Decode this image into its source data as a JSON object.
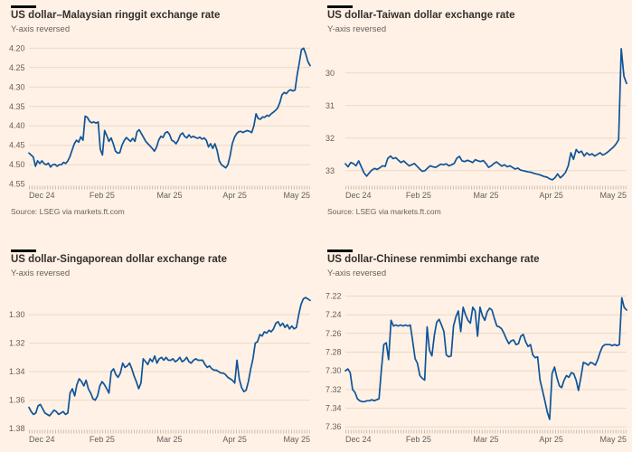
{
  "theme": {
    "background": "#FFF1E5",
    "title_color": "#33302E",
    "muted_color": "#66605C",
    "grid_color": "#EBD9C8",
    "tick_color": "#C7B7A5",
    "line_color": "#0F5499"
  },
  "chart_data": [
    {
      "type": "line",
      "title": "US dollar–Malaysian ringgit exchange rate",
      "subtitle": "Y-axis reversed",
      "source": "Source: LSEG via markets.ft.com",
      "legend": "none",
      "grid": "horizontal",
      "y_axis_reversed": true,
      "ylim": [
        4.197,
        4.553
      ],
      "y_ticks": [
        {
          "label": "4.20",
          "value": 4.2
        },
        {
          "label": "4.25",
          "value": 4.25
        },
        {
          "label": "4.30",
          "value": 4.3
        },
        {
          "label": "4.35",
          "value": 4.35
        },
        {
          "label": "4.40",
          "value": 4.4
        },
        {
          "label": "4.45",
          "value": 4.45
        },
        {
          "label": "4.50",
          "value": 4.5
        },
        {
          "label": "4.55",
          "value": 4.55
        }
      ],
      "x_ticks": [
        {
          "label": "Dec 24",
          "pos": 0.0,
          "anchor": "start"
        },
        {
          "label": "Feb 25",
          "pos": 0.26,
          "anchor": "middle"
        },
        {
          "label": "Mar 25",
          "pos": 0.5,
          "anchor": "middle"
        },
        {
          "label": "Apr 25",
          "pos": 0.732,
          "anchor": "middle"
        },
        {
          "label": "May 25",
          "pos": 1.0,
          "anchor": "end"
        }
      ],
      "values": [
        4.47,
        4.475,
        4.48,
        4.504,
        4.49,
        4.497,
        4.49,
        4.497,
        4.5,
        4.496,
        4.506,
        4.5,
        4.499,
        4.504,
        4.5,
        4.5,
        4.494,
        4.497,
        4.49,
        4.478,
        4.462,
        4.446,
        4.437,
        4.442,
        4.428,
        4.437,
        4.375,
        4.378,
        4.388,
        4.392,
        4.39,
        4.393,
        4.39,
        4.46,
        4.475,
        4.412,
        4.425,
        4.44,
        4.431,
        4.446,
        4.465,
        4.47,
        4.469,
        4.45,
        4.438,
        4.43,
        4.435,
        4.44,
        4.432,
        4.44,
        4.415,
        4.41,
        4.42,
        4.43,
        4.44,
        4.446,
        4.452,
        4.458,
        4.465,
        4.455,
        4.437,
        4.427,
        4.43,
        4.418,
        4.415,
        4.422,
        4.437,
        4.44,
        4.446,
        4.437,
        4.423,
        4.418,
        4.427,
        4.431,
        4.423,
        4.43,
        4.427,
        4.43,
        4.432,
        4.429,
        4.434,
        4.431,
        4.437,
        4.454,
        4.446,
        4.458,
        4.446,
        4.463,
        4.49,
        4.5,
        4.504,
        4.508,
        4.5,
        4.477,
        4.446,
        4.43,
        4.42,
        4.415,
        4.414,
        4.417,
        4.414,
        4.412,
        4.414,
        4.417,
        4.4,
        4.369,
        4.381,
        4.383,
        4.377,
        4.378,
        4.373,
        4.375,
        4.369,
        4.365,
        4.36,
        4.354,
        4.34,
        4.32,
        4.314,
        4.317,
        4.31,
        4.307,
        4.31,
        4.308,
        4.27,
        4.238,
        4.204,
        4.2,
        4.215,
        4.235,
        4.245
      ]
    },
    {
      "type": "line",
      "title": "US dollar-Taiwan dollar exchange rate",
      "subtitle": "Y-axis reversed",
      "source": "Source: LSEG via markets.ft.com",
      "legend": "none",
      "grid": "horizontal",
      "y_axis_reversed": true,
      "ylim": [
        29.2,
        33.45
      ],
      "y_ticks": [
        {
          "label": "30",
          "value": 30
        },
        {
          "label": "31",
          "value": 31
        },
        {
          "label": "32",
          "value": 32
        },
        {
          "label": "33",
          "value": 33
        }
      ],
      "x_ticks": [
        {
          "label": "Dec 24",
          "pos": 0.0,
          "anchor": "start"
        },
        {
          "label": "Feb 25",
          "pos": 0.26,
          "anchor": "middle"
        },
        {
          "label": "Mar 25",
          "pos": 0.5,
          "anchor": "middle"
        },
        {
          "label": "Apr 25",
          "pos": 0.732,
          "anchor": "middle"
        },
        {
          "label": "May 25",
          "pos": 1.0,
          "anchor": "end"
        }
      ],
      "values": [
        32.79,
        32.88,
        32.75,
        32.78,
        32.85,
        32.7,
        32.88,
        33.06,
        33.17,
        33.07,
        32.98,
        32.93,
        32.96,
        32.91,
        32.85,
        32.87,
        32.62,
        32.55,
        32.63,
        32.6,
        32.68,
        32.75,
        32.7,
        32.78,
        32.85,
        32.82,
        32.78,
        32.86,
        32.95,
        33.02,
        33.0,
        32.92,
        32.85,
        32.88,
        32.9,
        32.85,
        32.8,
        32.82,
        32.79,
        32.85,
        32.82,
        32.78,
        32.62,
        32.56,
        32.7,
        32.72,
        32.68,
        32.71,
        32.75,
        32.66,
        32.7,
        32.72,
        32.69,
        32.78,
        32.9,
        32.85,
        32.78,
        32.73,
        32.8,
        32.86,
        32.82,
        32.88,
        32.85,
        32.9,
        32.95,
        32.92,
        32.98,
        33.0,
        33.02,
        33.04,
        33.05,
        33.08,
        33.1,
        33.12,
        33.15,
        33.18,
        33.2,
        33.25,
        33.28,
        33.22,
        33.1,
        33.22,
        33.15,
        33.05,
        32.85,
        32.45,
        32.65,
        32.35,
        32.45,
        32.4,
        32.55,
        32.45,
        32.52,
        32.48,
        32.55,
        32.5,
        32.45,
        32.52,
        32.48,
        32.42,
        32.35,
        32.28,
        32.18,
        32.05,
        29.25,
        30.1,
        30.32
      ]
    },
    {
      "type": "line",
      "title": "US dollar-Singaporean dollar exchange rate",
      "subtitle": "Y-axis reversed",
      "source": "",
      "legend": "none",
      "grid": "horizontal",
      "y_axis_reversed": true,
      "ylim": [
        1.2835,
        1.3805
      ],
      "y_ticks": [
        {
          "label": "1.30",
          "value": 1.3
        },
        {
          "label": "1.32",
          "value": 1.32
        },
        {
          "label": "1.34",
          "value": 1.34
        },
        {
          "label": "1.36",
          "value": 1.36
        },
        {
          "label": "1.38",
          "value": 1.38
        }
      ],
      "x_ticks": [
        {
          "label": "Dec 24",
          "pos": 0.0,
          "anchor": "start"
        },
        {
          "label": "Feb 25",
          "pos": 0.26,
          "anchor": "middle"
        },
        {
          "label": "Mar 25",
          "pos": 0.5,
          "anchor": "middle"
        },
        {
          "label": "Apr 25",
          "pos": 0.732,
          "anchor": "middle"
        },
        {
          "label": "May 25",
          "pos": 1.0,
          "anchor": "end"
        }
      ],
      "values": [
        1.365,
        1.368,
        1.37,
        1.369,
        1.364,
        1.363,
        1.366,
        1.369,
        1.37,
        1.371,
        1.369,
        1.367,
        1.368,
        1.37,
        1.369,
        1.368,
        1.37,
        1.369,
        1.355,
        1.352,
        1.357,
        1.349,
        1.345,
        1.347,
        1.35,
        1.346,
        1.352,
        1.355,
        1.359,
        1.36,
        1.357,
        1.35,
        1.347,
        1.349,
        1.352,
        1.355,
        1.34,
        1.338,
        1.342,
        1.344,
        1.341,
        1.334,
        1.337,
        1.336,
        1.334,
        1.338,
        1.343,
        1.347,
        1.352,
        1.348,
        1.331,
        1.333,
        1.335,
        1.331,
        1.333,
        1.329,
        1.334,
        1.331,
        1.33,
        1.332,
        1.33,
        1.332,
        1.332,
        1.331,
        1.333,
        1.332,
        1.33,
        1.333,
        1.332,
        1.33,
        1.333,
        1.334,
        1.332,
        1.331,
        1.332,
        1.332,
        1.332,
        1.335,
        1.337,
        1.336,
        1.338,
        1.339,
        1.339,
        1.34,
        1.341,
        1.341,
        1.342,
        1.344,
        1.345,
        1.346,
        1.348,
        1.332,
        1.345,
        1.351,
        1.354,
        1.353,
        1.347,
        1.338,
        1.331,
        1.32,
        1.319,
        1.314,
        1.315,
        1.312,
        1.313,
        1.311,
        1.312,
        1.31,
        1.306,
        1.305,
        1.308,
        1.306,
        1.309,
        1.307,
        1.31,
        1.308,
        1.31,
        1.309,
        1.3,
        1.293,
        1.289,
        1.288,
        1.289,
        1.29
      ]
    },
    {
      "type": "line",
      "title": "US dollar-Chinese renmimbi exchange rate",
      "subtitle": "Y-axis reversed",
      "source": "",
      "legend": "none",
      "grid": "horizontal",
      "y_axis_reversed": true,
      "ylim": [
        7.2147,
        7.3627
      ],
      "y_ticks": [
        {
          "label": "7.22",
          "value": 7.22
        },
        {
          "label": "7.24",
          "value": 7.24
        },
        {
          "label": "7.26",
          "value": 7.26
        },
        {
          "label": "7.28",
          "value": 7.28
        },
        {
          "label": "7.30",
          "value": 7.3
        },
        {
          "label": "7.32",
          "value": 7.32
        },
        {
          "label": "7.34",
          "value": 7.34
        },
        {
          "label": "7.36",
          "value": 7.36
        }
      ],
      "x_ticks": [
        {
          "label": "Dec 24",
          "pos": 0.0,
          "anchor": "start"
        },
        {
          "label": "Feb 25",
          "pos": 0.26,
          "anchor": "middle"
        },
        {
          "label": "Mar 25",
          "pos": 0.5,
          "anchor": "middle"
        },
        {
          "label": "Apr 25",
          "pos": 0.732,
          "anchor": "middle"
        },
        {
          "label": "May 25",
          "pos": 1.0,
          "anchor": "end"
        }
      ],
      "values": [
        7.3,
        7.298,
        7.302,
        7.32,
        7.323,
        7.33,
        7.332,
        7.333,
        7.333,
        7.332,
        7.332,
        7.331,
        7.332,
        7.331,
        7.33,
        7.298,
        7.272,
        7.27,
        7.288,
        7.246,
        7.252,
        7.251,
        7.252,
        7.251,
        7.252,
        7.251,
        7.252,
        7.251,
        7.268,
        7.287,
        7.292,
        7.305,
        7.308,
        7.31,
        7.253,
        7.278,
        7.284,
        7.262,
        7.248,
        7.245,
        7.251,
        7.258,
        7.283,
        7.285,
        7.284,
        7.252,
        7.242,
        7.236,
        7.258,
        7.232,
        7.24,
        7.246,
        7.249,
        7.232,
        7.236,
        7.263,
        7.232,
        7.241,
        7.246,
        7.237,
        7.233,
        7.235,
        7.244,
        7.252,
        7.253,
        7.255,
        7.26,
        7.266,
        7.271,
        7.268,
        7.267,
        7.272,
        7.271,
        7.263,
        7.261,
        7.269,
        7.274,
        7.272,
        7.283,
        7.286,
        7.285,
        7.31,
        7.321,
        7.332,
        7.344,
        7.352,
        7.303,
        7.296,
        7.307,
        7.316,
        7.318,
        7.31,
        7.305,
        7.307,
        7.302,
        7.303,
        7.31,
        7.321,
        7.307,
        7.291,
        7.292,
        7.294,
        7.291,
        7.292,
        7.294,
        7.288,
        7.28,
        7.274,
        7.272,
        7.272,
        7.272,
        7.273,
        7.272,
        7.273,
        7.272,
        7.222,
        7.232,
        7.235
      ]
    }
  ]
}
